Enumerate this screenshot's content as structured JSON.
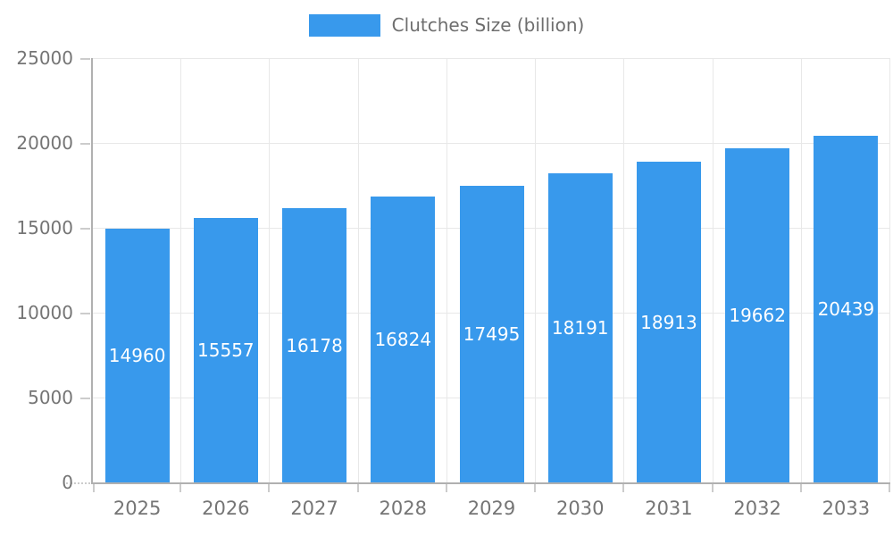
{
  "chart_data": {
    "type": "bar",
    "title": "Clutches Size (billion)",
    "legend": [
      "Clutches Size (billion)"
    ],
    "legend_position": "top-center",
    "categories": [
      "2025",
      "2026",
      "2027",
      "2028",
      "2029",
      "2030",
      "2031",
      "2032",
      "2033"
    ],
    "series": [
      {
        "name": "Clutches Size (billion)",
        "values": [
          14960,
          15557,
          16178,
          16824,
          17495,
          18191,
          18913,
          19662,
          20439
        ]
      }
    ],
    "value_labels_inside_bars": true,
    "xlabel": "",
    "ylabel": "",
    "ylim": [
      0,
      25000
    ],
    "yticks": [
      0,
      5000,
      10000,
      15000,
      20000,
      25000
    ],
    "grid": true,
    "colors": {
      "bar": "#3899ec",
      "value_label": "#ffffff",
      "axis_line": "#b0b0b0",
      "grid_line": "#e8e8e8",
      "tick_mark": "#cccccc",
      "tick_label": "#757575",
      "legend_text": "#6e6e6e"
    }
  }
}
